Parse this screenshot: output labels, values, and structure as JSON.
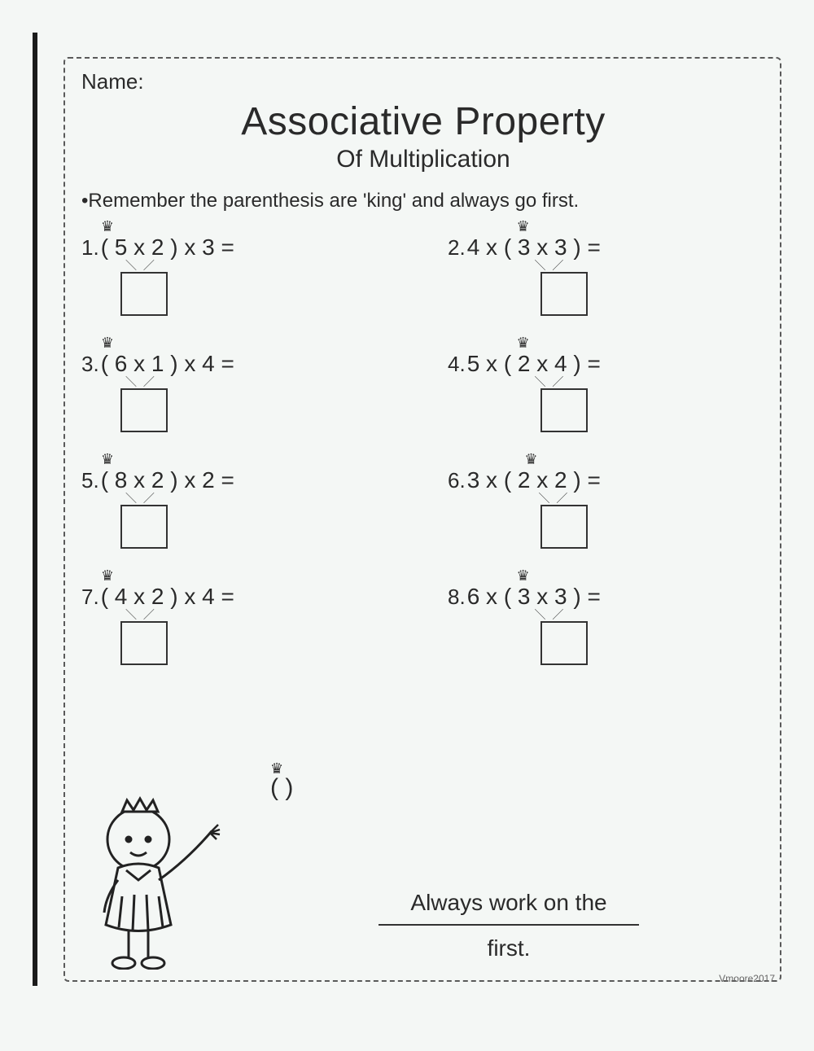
{
  "meta": {
    "background_color": "#f4f7f5",
    "text_color": "#2a2a2a",
    "border_color": "#5a5a5a",
    "box_border_color": "#333333",
    "font_family": "Comic Sans MS"
  },
  "name_label": "Name:",
  "title": "Associative Property",
  "subtitle": "Of Multiplication",
  "reminder": "•Remember the parenthesis are 'king' and always go first.",
  "crown_glyph": "♛",
  "wedge_glyph": "＼  ／",
  "problems": [
    {
      "num": "1.",
      "expression": "( 5 x 2 ) x 3 =",
      "crown_left_pct": 5,
      "wedge_left_pct": 30
    },
    {
      "num": "2.",
      "expression": "4 x ( 3 x 3 )  =",
      "crown_left_pct": 42,
      "wedge_left_pct": 62
    },
    {
      "num": "3.",
      "expression": "( 6 x 1 ) x 4 =",
      "crown_left_pct": 5,
      "wedge_left_pct": 30
    },
    {
      "num": "4.",
      "expression": "5 x ( 2 x 4 ) =",
      "crown_left_pct": 42,
      "wedge_left_pct": 62
    },
    {
      "num": "5.",
      "expression": "( 8 x 2 ) x 2 =",
      "crown_left_pct": 5,
      "wedge_left_pct": 30
    },
    {
      "num": "6.",
      "expression": "3 x  ( 2 x 2 ) =",
      "crown_left_pct": 48,
      "wedge_left_pct": 65
    },
    {
      "num": "7.",
      "expression": "( 4 x 2 ) x 4 =",
      "crown_left_pct": 5,
      "wedge_left_pct": 30
    },
    {
      "num": "8.",
      "expression": "6 x ( 3 x 3 ) =",
      "crown_left_pct": 42,
      "wedge_left_pct": 62
    }
  ],
  "point_paren": "(   )",
  "fill_sentence_top": "Always work on the",
  "fill_sentence_bottom": "first.",
  "credit": "Vmoore2017"
}
